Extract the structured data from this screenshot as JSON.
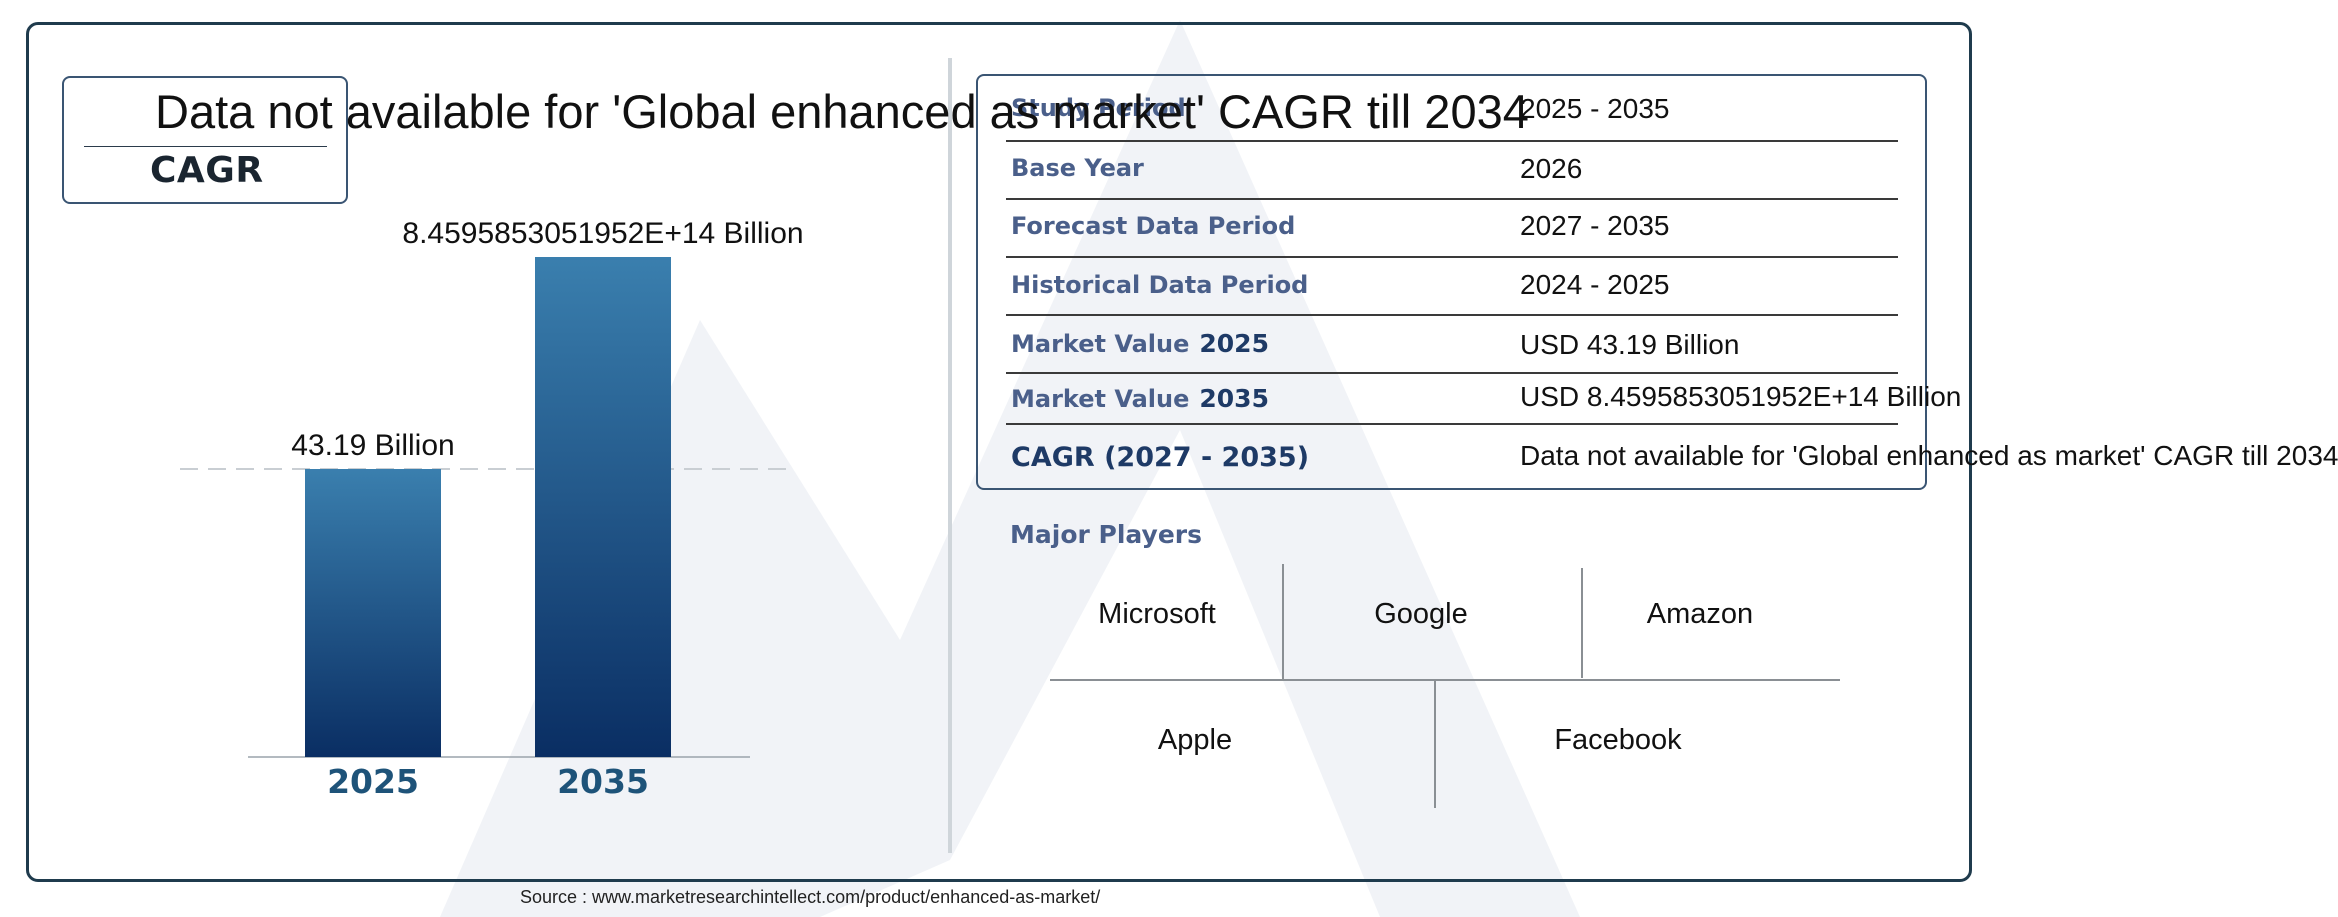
{
  "colors": {
    "frame": "#1f3b4d",
    "bar_top": "#3a7fae",
    "bar_bottom": "#0a2e63",
    "year_label": "#1e5379",
    "row_label": "#4a5f8a",
    "watermark": "#eef1f5"
  },
  "cagr": {
    "label": "CAGR",
    "headline": "Data not available for 'Global enhanced as market' CAGR till 2034"
  },
  "chart_data": {
    "type": "bar",
    "categories": [
      "2025",
      "2035"
    ],
    "values": [
      43.19,
      845958530519520
    ],
    "value_labels": [
      "43.19 Billion",
      "8.4595853051952E+14 Billion"
    ],
    "title": "",
    "xlabel": "",
    "ylabel": ""
  },
  "table": {
    "rows": [
      {
        "label": "Study Period",
        "year": "",
        "value": "2025 - 2035"
      },
      {
        "label": "Base Year",
        "year": "",
        "value": "2026"
      },
      {
        "label": "Forecast Data Period",
        "year": "",
        "value": "2027 - 2035"
      },
      {
        "label": "Historical Data Period",
        "year": "",
        "value": "2024 - 2025"
      },
      {
        "label": "Market Value",
        "year": "2025",
        "value": "USD 43.19 Billion"
      },
      {
        "label": "Market Value",
        "year": "2035",
        "value": "USD 8.4595853051952E+14 Billion"
      },
      {
        "label": "CAGR (2027 - 2035)",
        "year": "",
        "value": "Data not available for 'Global enhanced as market' CAGR till 2034"
      }
    ]
  },
  "players": {
    "title": "Major Players",
    "names": [
      "Microsoft",
      "Google",
      "Amazon",
      "Apple",
      "Facebook"
    ]
  },
  "source": "Source : www.marketresearchintellect.com/product/enhanced-as-market/"
}
